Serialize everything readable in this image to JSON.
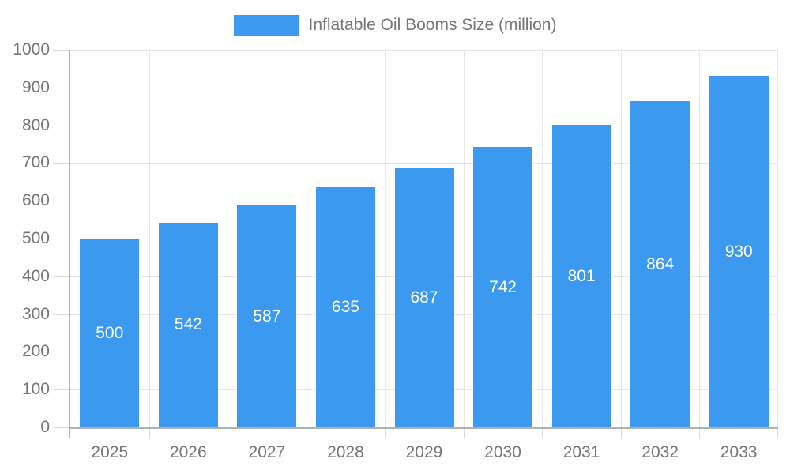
{
  "chart_data": {
    "type": "bar",
    "title": "",
    "legend": "Inflatable Oil Booms Size (million)",
    "legend_position": "top",
    "categories": [
      "2025",
      "2026",
      "2027",
      "2028",
      "2029",
      "2030",
      "2031",
      "2032",
      "2033"
    ],
    "values": [
      500,
      542,
      587,
      635,
      687,
      742,
      801,
      864,
      930
    ],
    "series": [
      {
        "name": "Inflatable Oil Booms Size (million)",
        "values": [
          500,
          542,
          587,
          635,
          687,
          742,
          801,
          864,
          930
        ]
      }
    ],
    "xlabel": "",
    "ylabel": "",
    "ylim": [
      0,
      1000
    ],
    "ytick_step": 100,
    "grid": true,
    "bar_labels_visible": true,
    "colors": {
      "bar": "#3C99F0",
      "grid": "#e6e6e6",
      "axis": "#b1b1b1",
      "tick": "#d8d8d8",
      "label_text": "#757575",
      "bar_label_text": "#ffffff"
    }
  }
}
